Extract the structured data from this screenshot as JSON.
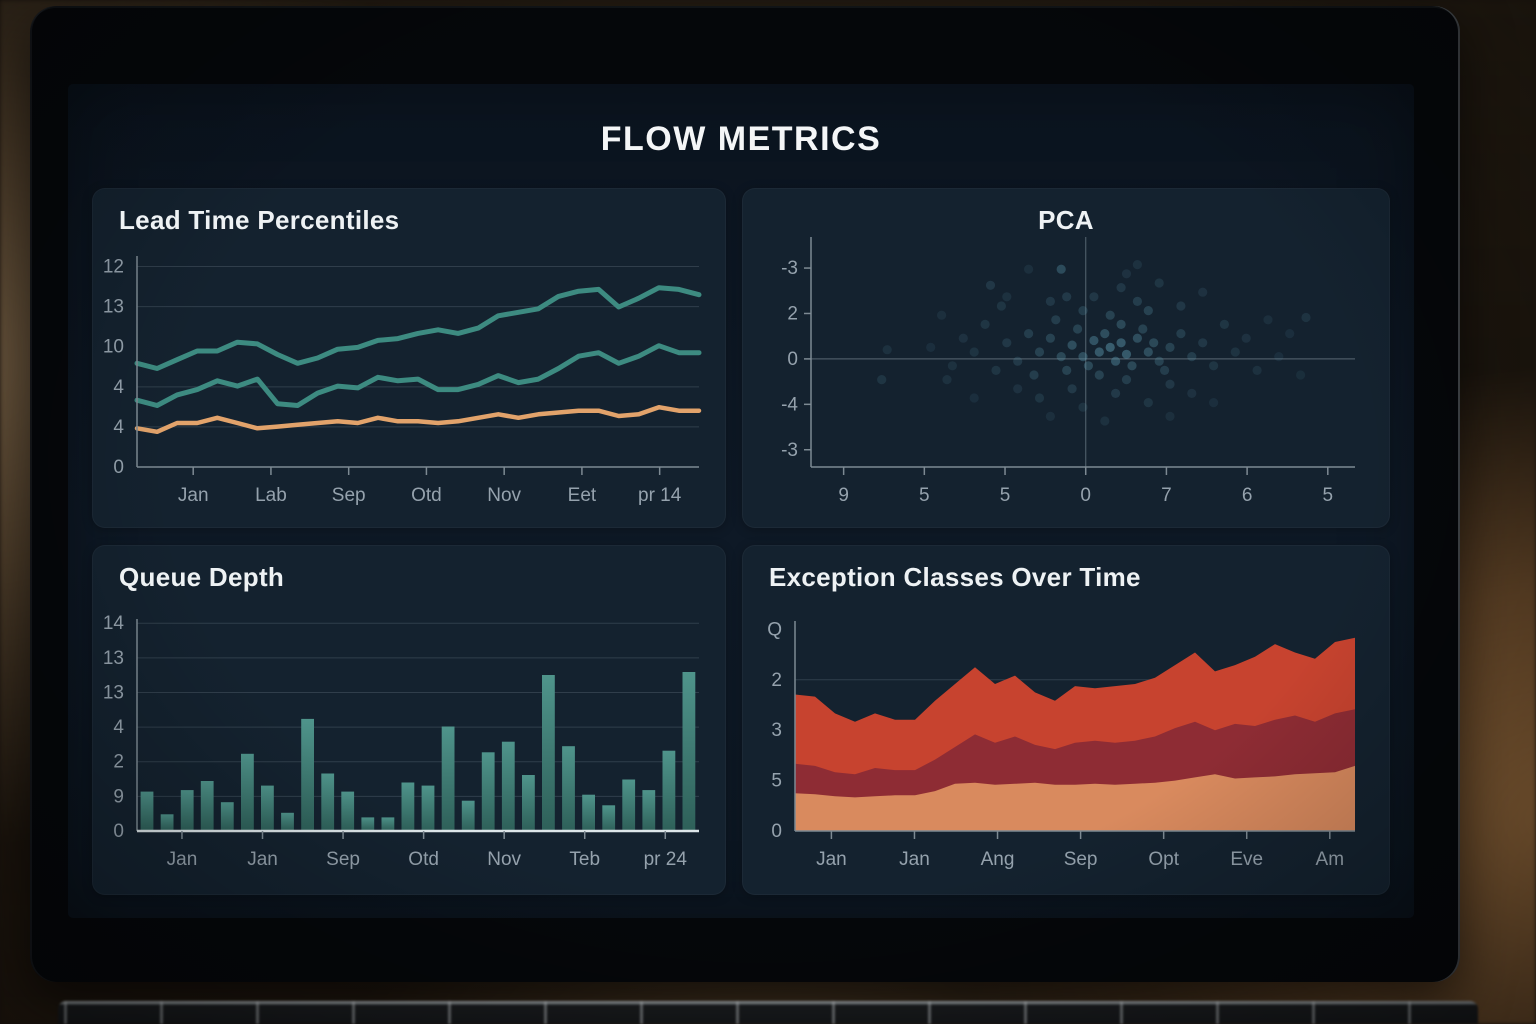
{
  "window": {
    "title": "FLOW METRICS"
  },
  "colors": {
    "teal_line": "#3d8b81",
    "orange_line": "#e2a36b",
    "bar_top": "#4f948b",
    "bar_bottom": "#2e6059",
    "scatter_dot": "#558ea3",
    "area_salmon": "#d98a5e",
    "area_maroon": "#8e2c34",
    "area_red": "#c7432f",
    "panel_bg": "#14222f",
    "screen_bg": "#0d1722",
    "axis_text": "#95a2ad"
  },
  "chart_data": [
    {
      "id": "lead_time",
      "type": "line",
      "title": "Lead Time Percentiles",
      "y_ticks": [
        "12",
        "13",
        "10",
        "4",
        "4",
        "0"
      ],
      "y_grid_indices": [
        0,
        1,
        3,
        4
      ],
      "x_ticks": [
        "Jan",
        "Lab",
        "Sep",
        "Otd",
        "Nov",
        "Eet",
        "pr 14"
      ],
      "ylim": [
        0,
        12
      ],
      "legend": "none",
      "series": [
        {
          "name": "upper-percentile",
          "color": "#3d8b81",
          "width": 5,
          "values": [
            5.9,
            5.6,
            6.1,
            6.6,
            6.6,
            7.1,
            7.0,
            6.4,
            5.9,
            6.2,
            6.7,
            6.8,
            7.2,
            7.3,
            7.6,
            7.8,
            7.6,
            7.9,
            8.6,
            8.8,
            9.0,
            9.7,
            10.0,
            10.1,
            9.1,
            9.6,
            10.2,
            10.1,
            9.8
          ]
        },
        {
          "name": "median-percentile",
          "color": "#3d8b81",
          "width": 5,
          "values": [
            3.8,
            3.5,
            4.1,
            4.4,
            4.9,
            4.6,
            5.0,
            3.6,
            3.5,
            4.2,
            4.6,
            4.5,
            5.1,
            4.9,
            5.0,
            4.4,
            4.4,
            4.7,
            5.2,
            4.8,
            5.0,
            5.6,
            6.3,
            6.5,
            5.9,
            6.3,
            6.9,
            6.5,
            6.5
          ]
        },
        {
          "name": "lower-percentile",
          "color": "#e2a36b",
          "width": 4.5,
          "values": [
            2.2,
            2.0,
            2.5,
            2.5,
            2.8,
            2.5,
            2.2,
            2.3,
            2.4,
            2.5,
            2.6,
            2.5,
            2.8,
            2.6,
            2.6,
            2.5,
            2.6,
            2.8,
            3.0,
            2.8,
            3.0,
            3.1,
            3.2,
            3.2,
            2.9,
            3.0,
            3.4,
            3.2,
            3.2
          ]
        }
      ]
    },
    {
      "id": "pca",
      "type": "scatter",
      "title": "PCA",
      "y_ticks": [
        "-3",
        "2",
        "0",
        "-4",
        "-3"
      ],
      "x_ticks": [
        "9",
        "5",
        "5",
        "0",
        "7",
        "6",
        "5"
      ],
      "crosshair": {
        "x_tick_index": 3,
        "y_tick_index": 2
      },
      "dot_color": "#558ea3",
      "points": [
        [
          0.55,
          0.48,
          0.55
        ],
        [
          0.53,
          0.5,
          0.5
        ],
        [
          0.57,
          0.46,
          0.5
        ],
        [
          0.52,
          0.45,
          0.45
        ],
        [
          0.58,
          0.51,
          0.5
        ],
        [
          0.5,
          0.52,
          0.4
        ],
        [
          0.6,
          0.44,
          0.4
        ],
        [
          0.56,
          0.54,
          0.45
        ],
        [
          0.54,
          0.42,
          0.4
        ],
        [
          0.62,
          0.5,
          0.4
        ],
        [
          0.48,
          0.47,
          0.4
        ],
        [
          0.51,
          0.56,
          0.35
        ],
        [
          0.59,
          0.56,
          0.35
        ],
        [
          0.63,
          0.46,
          0.35
        ],
        [
          0.46,
          0.52,
          0.35
        ],
        [
          0.57,
          0.38,
          0.35
        ],
        [
          0.49,
          0.4,
          0.3
        ],
        [
          0.64,
          0.54,
          0.3
        ],
        [
          0.44,
          0.44,
          0.3
        ],
        [
          0.61,
          0.4,
          0.3
        ],
        [
          0.66,
          0.48,
          0.3
        ],
        [
          0.42,
          0.5,
          0.3
        ],
        [
          0.53,
          0.6,
          0.3
        ],
        [
          0.58,
          0.62,
          0.25
        ],
        [
          0.47,
          0.58,
          0.3
        ],
        [
          0.65,
          0.58,
          0.25
        ],
        [
          0.4,
          0.42,
          0.25
        ],
        [
          0.68,
          0.42,
          0.25
        ],
        [
          0.55,
          0.34,
          0.3
        ],
        [
          0.5,
          0.32,
          0.25
        ],
        [
          0.62,
          0.32,
          0.3
        ],
        [
          0.45,
          0.36,
          0.25
        ],
        [
          0.7,
          0.52,
          0.25
        ],
        [
          0.38,
          0.54,
          0.22
        ],
        [
          0.56,
          0.68,
          0.22
        ],
        [
          0.48,
          0.66,
          0.22
        ],
        [
          0.66,
          0.64,
          0.2
        ],
        [
          0.72,
          0.46,
          0.2
        ],
        [
          0.36,
          0.46,
          0.2
        ],
        [
          0.6,
          0.28,
          0.25
        ],
        [
          0.52,
          0.26,
          0.2
        ],
        [
          0.44,
          0.28,
          0.2
        ],
        [
          0.68,
          0.3,
          0.2
        ],
        [
          0.74,
          0.56,
          0.18
        ],
        [
          0.34,
          0.58,
          0.18
        ],
        [
          0.62,
          0.72,
          0.18
        ],
        [
          0.42,
          0.7,
          0.18
        ],
        [
          0.76,
          0.38,
          0.18
        ],
        [
          0.32,
          0.38,
          0.18
        ],
        [
          0.57,
          0.22,
          0.2
        ],
        [
          0.78,
          0.5,
          0.16
        ],
        [
          0.3,
          0.5,
          0.16
        ],
        [
          0.5,
          0.74,
          0.16
        ],
        [
          0.7,
          0.68,
          0.15
        ],
        [
          0.38,
          0.66,
          0.15
        ],
        [
          0.8,
          0.44,
          0.15
        ],
        [
          0.28,
          0.44,
          0.15
        ],
        [
          0.64,
          0.2,
          0.18
        ],
        [
          0.46,
          0.14,
          0.38
        ],
        [
          0.82,
          0.58,
          0.14
        ],
        [
          0.26,
          0.56,
          0.14
        ],
        [
          0.54,
          0.8,
          0.14
        ],
        [
          0.72,
          0.24,
          0.15
        ],
        [
          0.36,
          0.26,
          0.14
        ],
        [
          0.84,
          0.36,
          0.13
        ],
        [
          0.24,
          0.34,
          0.13
        ],
        [
          0.58,
          0.16,
          0.15
        ],
        [
          0.66,
          0.78,
          0.13
        ],
        [
          0.44,
          0.78,
          0.13
        ],
        [
          0.86,
          0.52,
          0.12
        ],
        [
          0.22,
          0.48,
          0.12
        ],
        [
          0.4,
          0.14,
          0.13
        ],
        [
          0.74,
          0.72,
          0.12
        ],
        [
          0.3,
          0.7,
          0.12
        ],
        [
          0.88,
          0.42,
          0.12
        ],
        [
          0.14,
          0.49,
          0.14
        ],
        [
          0.33,
          0.21,
          0.2
        ],
        [
          0.91,
          0.35,
          0.16
        ],
        [
          0.13,
          0.62,
          0.18
        ],
        [
          0.41,
          0.6,
          0.25
        ],
        [
          0.35,
          0.3,
          0.18
        ],
        [
          0.25,
          0.62,
          0.14
        ],
        [
          0.6,
          0.12,
          0.14
        ],
        [
          0.9,
          0.6,
          0.11
        ],
        [
          0.47,
          0.26,
          0.22
        ]
      ]
    },
    {
      "id": "queue_depth",
      "type": "bar",
      "title": "Queue Depth",
      "y_ticks": [
        "14",
        "13",
        "13",
        "4",
        "2",
        "9",
        "0"
      ],
      "y_grid_indices": [
        0,
        1,
        2,
        3,
        4,
        5
      ],
      "x_ticks": [
        "Jan",
        "Jan",
        "Sep",
        "Otd",
        "Nov",
        "Teb",
        "pr 24"
      ],
      "ylim": [
        0,
        14
      ],
      "values": [
        2.6,
        1.1,
        2.7,
        3.3,
        1.9,
        5.1,
        3.0,
        1.2,
        7.4,
        3.8,
        2.6,
        0.9,
        0.9,
        3.2,
        3.0,
        6.9,
        2.0,
        5.2,
        5.9,
        3.7,
        10.3,
        5.6,
        2.4,
        1.7,
        3.4,
        2.7,
        5.3,
        10.5
      ]
    },
    {
      "id": "exceptions",
      "type": "area",
      "title": "Exception Classes Over Time",
      "y_ticks": [
        "Q",
        "2",
        "3",
        "5",
        "0"
      ],
      "y_grid_indices": [
        1
      ],
      "x_ticks": [
        "Jan",
        "Jan",
        "Ang",
        "Sep",
        "Opt",
        "Eve",
        "Am"
      ],
      "ylim": [
        0,
        10
      ],
      "stacked_tops": true,
      "series": [
        {
          "name": "class-bottom",
          "color": "#d98a5e",
          "values": [
            1.8,
            1.75,
            1.65,
            1.6,
            1.65,
            1.7,
            1.7,
            1.9,
            2.25,
            2.3,
            2.2,
            2.25,
            2.3,
            2.2,
            2.2,
            2.25,
            2.2,
            2.25,
            2.3,
            2.4,
            2.55,
            2.7,
            2.5,
            2.55,
            2.6,
            2.7,
            2.75,
            2.8,
            3.1
          ]
        },
        {
          "name": "class-middle",
          "color": "#8e2c34",
          "values": [
            3.2,
            3.1,
            2.8,
            2.7,
            3.0,
            2.9,
            2.9,
            3.4,
            4.0,
            4.6,
            4.2,
            4.5,
            4.1,
            3.9,
            4.2,
            4.3,
            4.2,
            4.3,
            4.5,
            4.9,
            5.2,
            4.8,
            5.1,
            5.0,
            5.3,
            5.5,
            5.2,
            5.6,
            5.8
          ]
        },
        {
          "name": "class-top",
          "color": "#c7432f",
          "values": [
            6.5,
            6.4,
            5.6,
            5.2,
            5.6,
            5.3,
            5.3,
            6.2,
            7.0,
            7.8,
            7.0,
            7.4,
            6.6,
            6.2,
            6.9,
            6.8,
            6.9,
            7.0,
            7.3,
            7.9,
            8.5,
            7.6,
            7.9,
            8.3,
            8.9,
            8.5,
            8.2,
            9.0,
            9.2
          ]
        }
      ]
    }
  ]
}
